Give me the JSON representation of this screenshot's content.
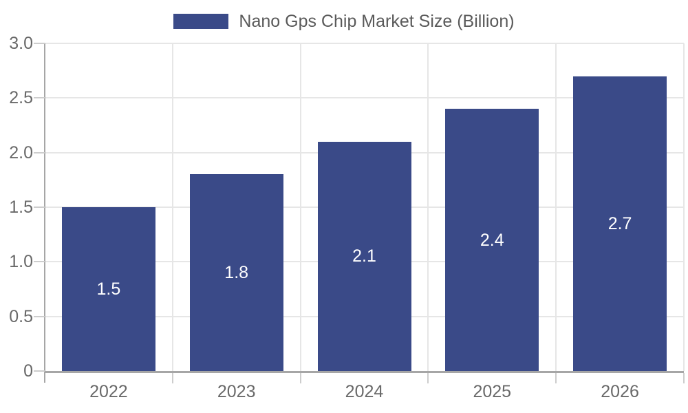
{
  "chart_data": {
    "type": "bar",
    "legend_label": "Nano Gps Chip Market Size (Billion)",
    "categories": [
      "2022",
      "2023",
      "2024",
      "2025",
      "2026"
    ],
    "values": [
      1.5,
      1.8,
      2.1,
      2.4,
      2.7
    ],
    "bar_labels": [
      "1.5",
      "1.8",
      "2.1",
      "2.4",
      "2.7"
    ],
    "ylim": [
      0,
      3.0
    ],
    "yticks": [
      0,
      0.5,
      1.0,
      1.5,
      2.0,
      2.5,
      3.0
    ],
    "ytick_labels": [
      "0",
      "0.5",
      "1.0",
      "1.5",
      "2.0",
      "2.5",
      "3.0"
    ],
    "grid": "on",
    "legend_position": "top-center",
    "colors": {
      "bar": "#3A4A88",
      "bar_label": "#FFFFFF",
      "grid": "#E6E6E6",
      "spine": "#A6A6A6",
      "tick": "#CDCDCD",
      "tick_label": "#696969",
      "legend_text": "#5A5A5A",
      "background": "#FFFFFF"
    }
  }
}
